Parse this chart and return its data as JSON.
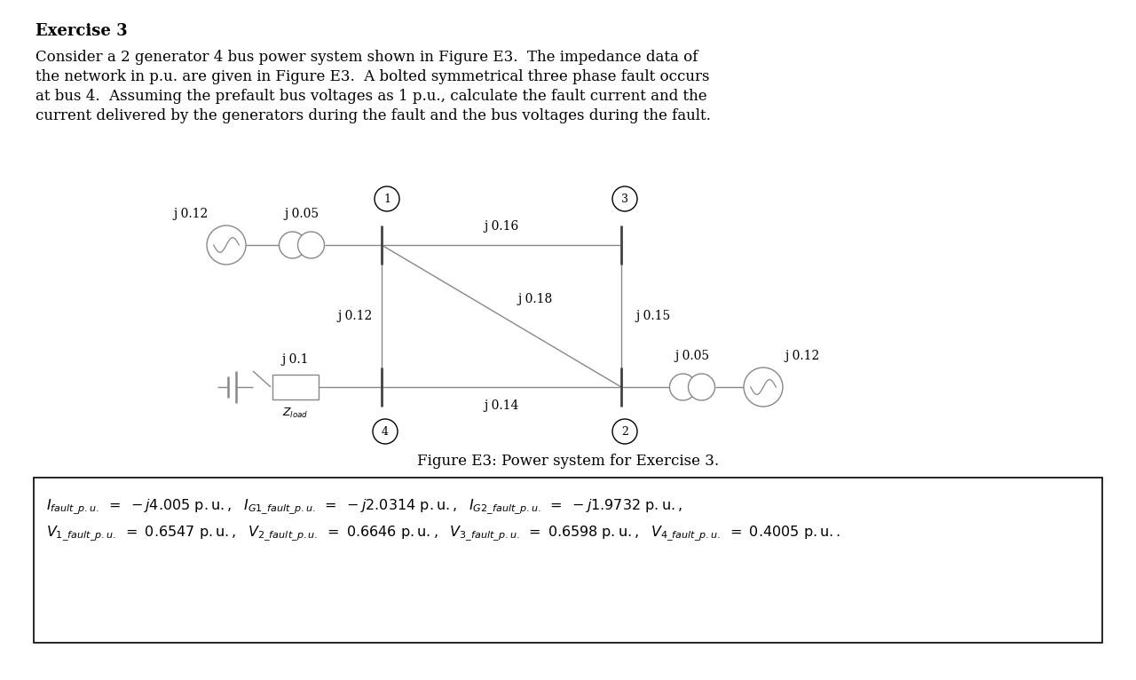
{
  "title": "Exercise 3",
  "para_line1": "Consider a 2 generator 4 bus power system shown in Figure E3.  The impedance data of",
  "para_line2": "the network in p.u. are given in Figure E3.  A bolted symmetrical three phase fault occurs",
  "para_line3": "at bus 4.  Assuming the prefault bus voltages as 1 p.u., calculate the fault current and the",
  "para_line4": "current delivered by the generators during the fault and the bus voltages during the fault.",
  "figure_caption": "Figure E3: Power system for Exercise 3.",
  "background": "#ffffff",
  "text_color": "#000000",
  "line_color": "#888888",
  "b1x": 0.4,
  "b1y": 0.61,
  "b3x": 0.66,
  "b3y": 0.61,
  "b4x": 0.4,
  "b4y": 0.43,
  "b2x": 0.66,
  "b2y": 0.43
}
